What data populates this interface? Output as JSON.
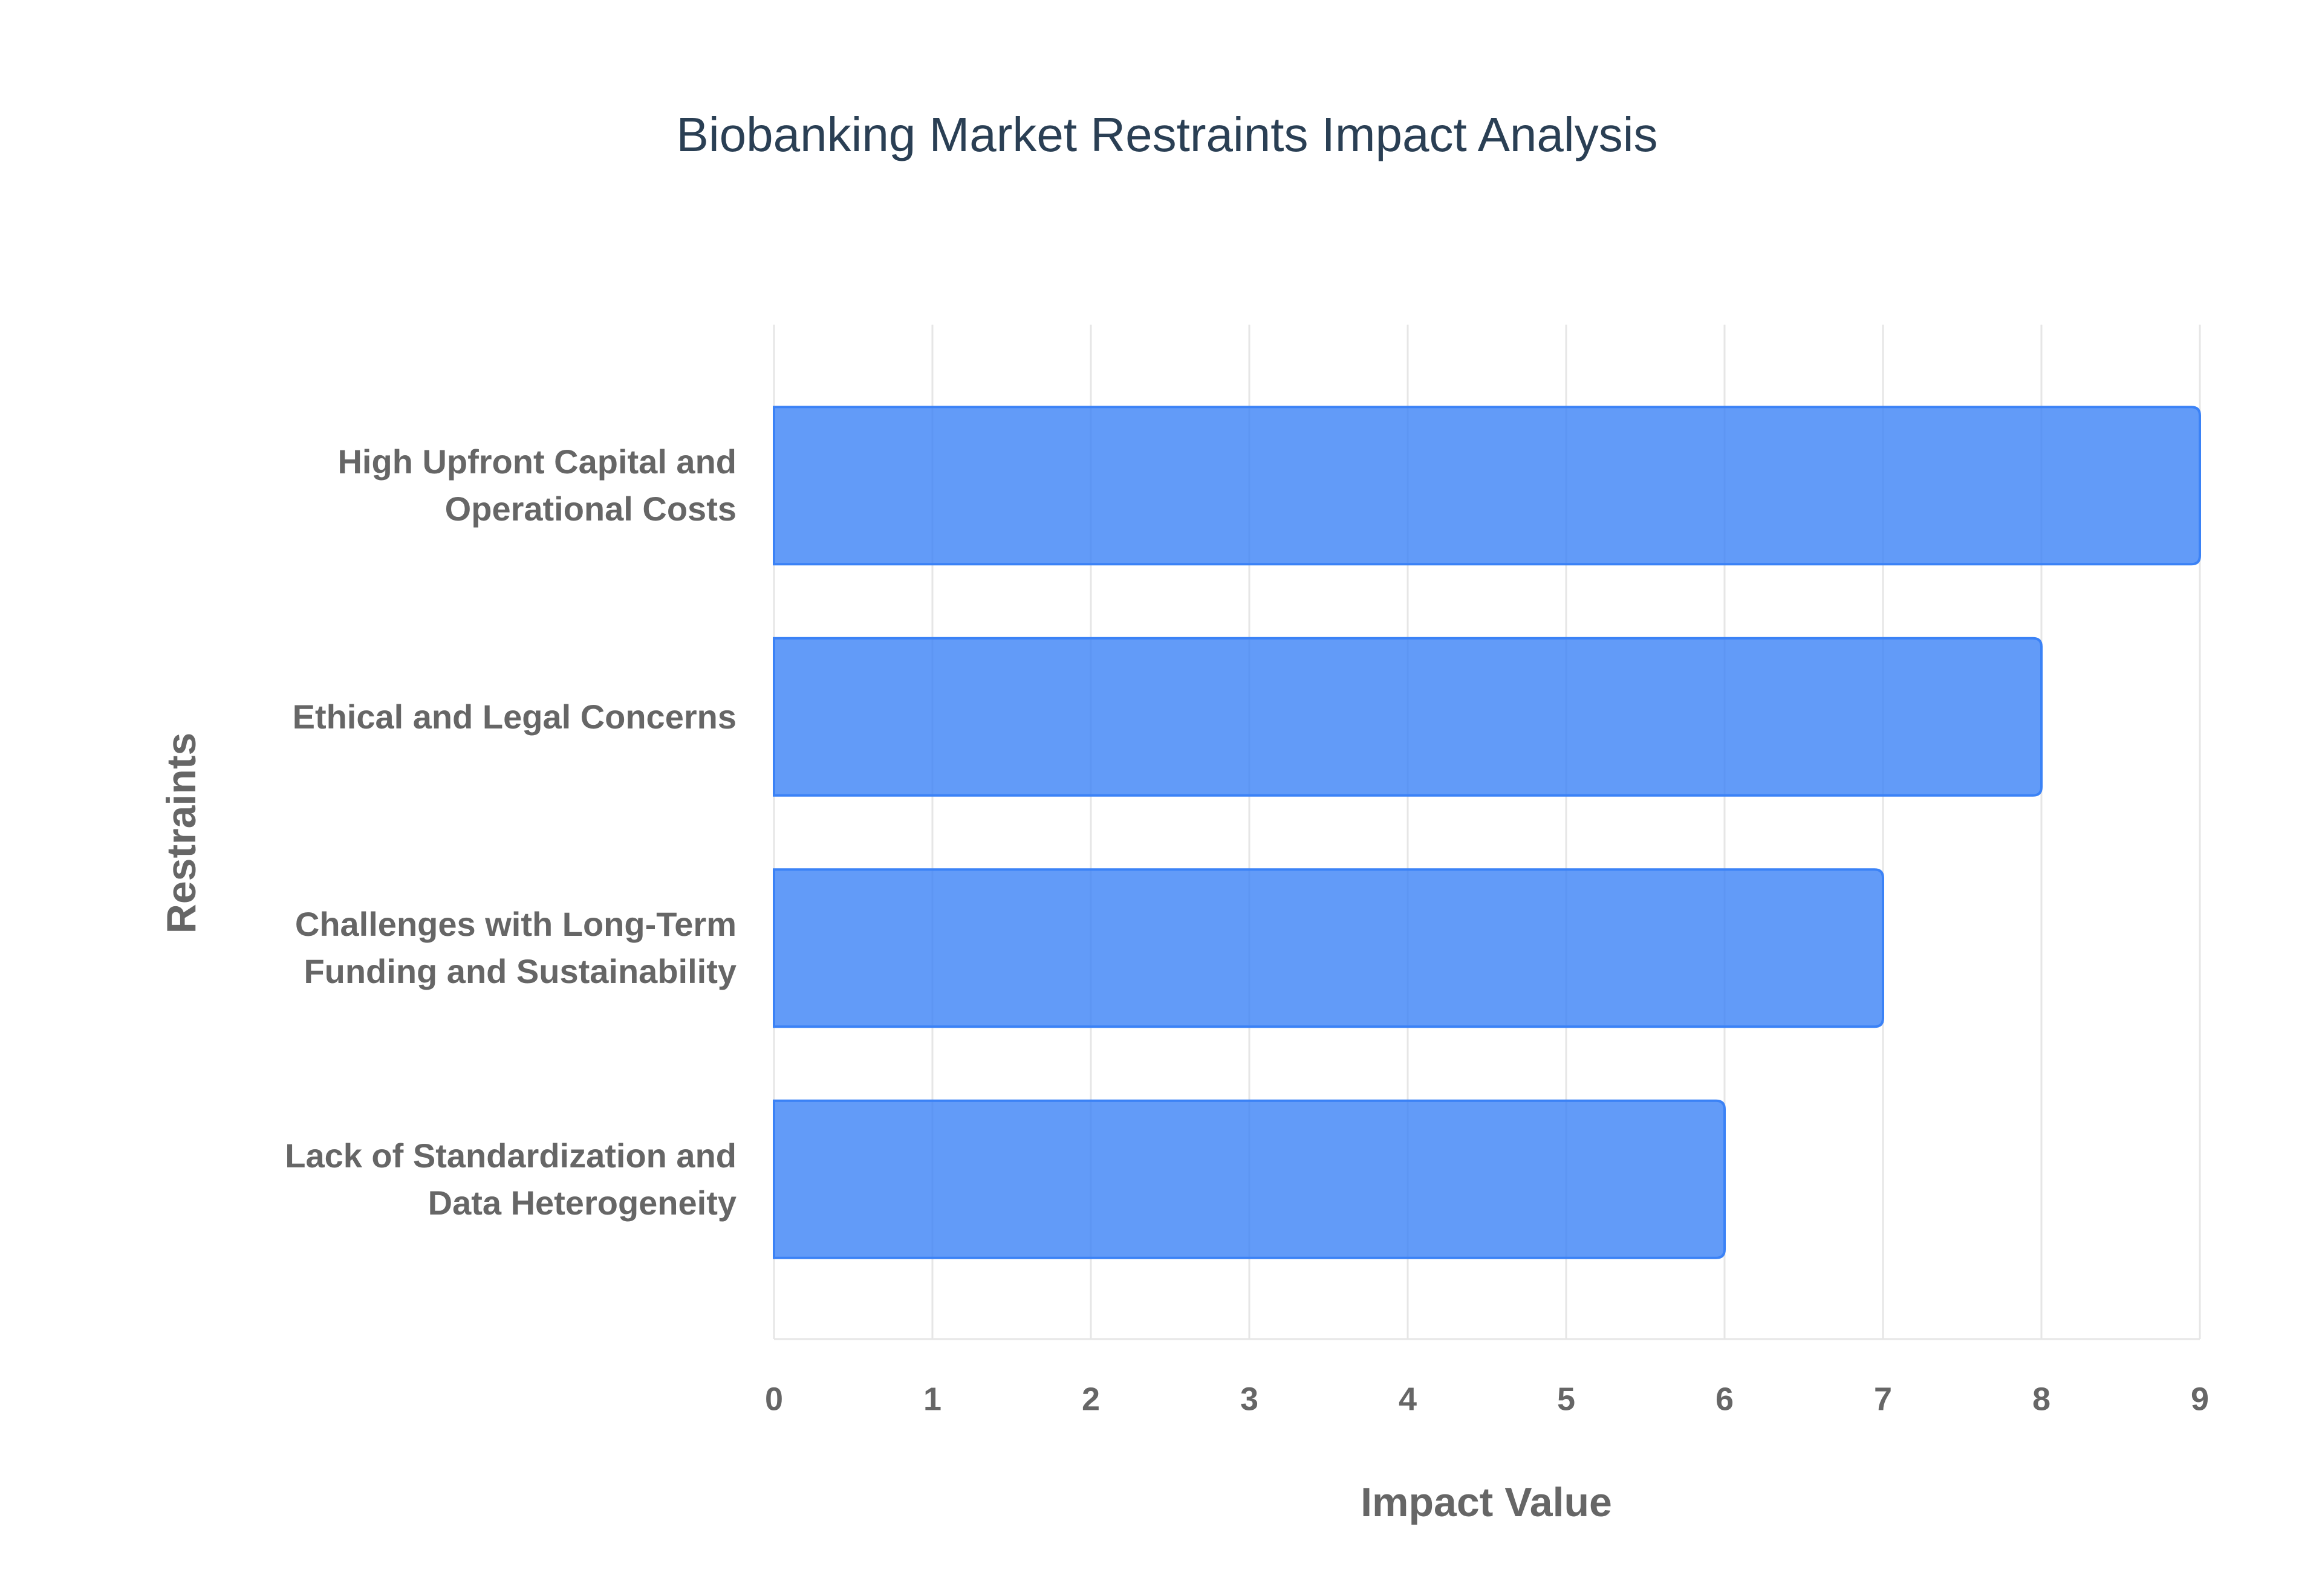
{
  "chart_data": {
    "type": "bar",
    "orientation": "horizontal",
    "title": "Biobanking Market Restraints Impact Analysis",
    "x_label": "Impact Value",
    "y_label": "Restraints",
    "categories": [
      "High Upfront Capital and Operational Costs",
      "Ethical and Legal Concerns",
      "Challenges with Long-Term Funding and Sustainability",
      "Lack of Standardization and Data Heterogeneity"
    ],
    "values": [
      9,
      8,
      7,
      6
    ],
    "color": "#3b82f6",
    "xlim": [
      0,
      9
    ],
    "xticks": [
      0,
      1,
      2,
      3,
      4,
      5,
      6,
      7,
      8,
      9
    ],
    "grid": true
  }
}
